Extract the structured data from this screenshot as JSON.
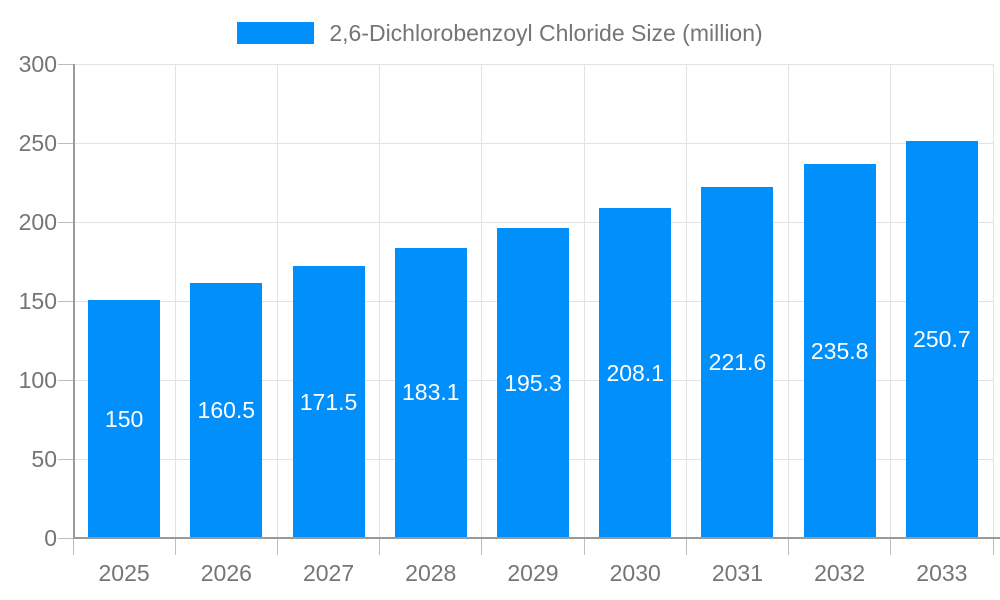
{
  "chart_data": {
    "type": "bar",
    "title": "2,6-Dichlorobenzoyl Chloride Size (million)",
    "legend_position": "top",
    "categories": [
      "2025",
      "2026",
      "2027",
      "2028",
      "2029",
      "2030",
      "2031",
      "2032",
      "2033"
    ],
    "values": [
      150,
      160.5,
      171.5,
      183.1,
      195.3,
      208.1,
      221.6,
      235.8,
      250.7
    ],
    "xlabel": "",
    "ylabel": "",
    "ylim": [
      0,
      300
    ],
    "yticks": [
      0,
      50,
      100,
      150,
      200,
      250,
      300
    ],
    "grid": true,
    "value_labels": "inside-center",
    "colors": {
      "bar": "#008FFB",
      "axis_text": "#757575",
      "value_label": "#FFFFFF",
      "gridline": "#E2E2E2",
      "tick": "#BDBDBD",
      "axis_line": "#9A9A9A"
    }
  }
}
